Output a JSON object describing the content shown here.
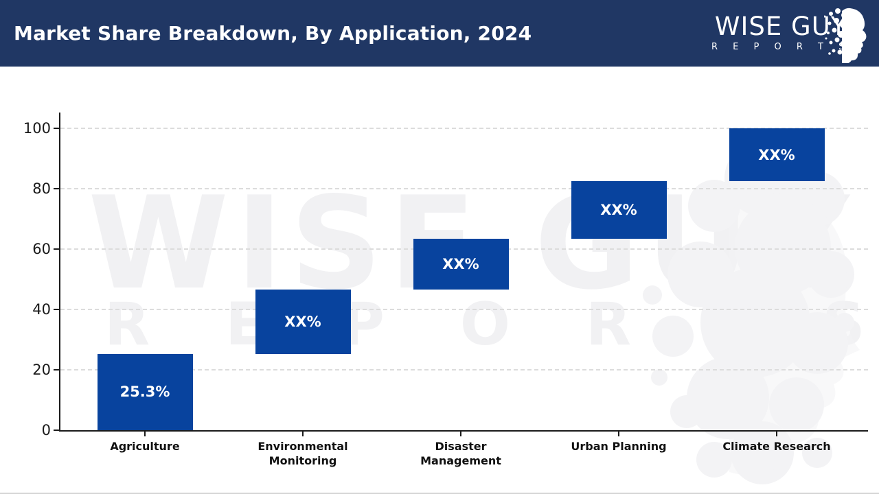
{
  "header": {
    "title": "Market Share Breakdown, By Application, 2024",
    "logo": {
      "brand": "WISE GUY",
      "sub": "R E P O R T S",
      "face_icon": "dotted-head-profile"
    }
  },
  "watermark": {
    "line1": "WISE GUY",
    "line2": "R E P O R T S",
    "face_icon": "dotted-head-profile"
  },
  "colors": {
    "header_bg": "#203764",
    "bar_fill": "#08439e",
    "bar_label": "#ffffff",
    "grid": "#dcdcdc",
    "axis": "#1a1a1a",
    "watermark": "#f1f1f3",
    "footer_line": "#d5d5d5"
  },
  "chart_data": {
    "type": "bar",
    "variant": "floating-waterfall",
    "title": "Market Share Breakdown, By Application, 2024",
    "categories": [
      "Agriculture",
      "Environmental Monitoring",
      "Disaster Management",
      "Urban Planning",
      "Climate Research"
    ],
    "segments": [
      {
        "category": "Agriculture",
        "start": 0,
        "end": 25.3,
        "label": "25.3%"
      },
      {
        "category": "Environmental Monitoring",
        "start": 25.3,
        "end": 46.5,
        "label": "XX%"
      },
      {
        "category": "Disaster Management",
        "start": 46.5,
        "end": 63.3,
        "label": "XX%"
      },
      {
        "category": "Urban Planning",
        "start": 63.3,
        "end": 82.5,
        "label": "XX%"
      },
      {
        "category": "Climate Research",
        "start": 82.5,
        "end": 100,
        "label": "XX%"
      }
    ],
    "xlabel": "",
    "ylabel": "",
    "ylim": [
      0,
      100
    ],
    "yticks": [
      0,
      20,
      40,
      60,
      80,
      100
    ],
    "grid": {
      "horizontal": true,
      "style": "dashed"
    },
    "legend": null
  }
}
